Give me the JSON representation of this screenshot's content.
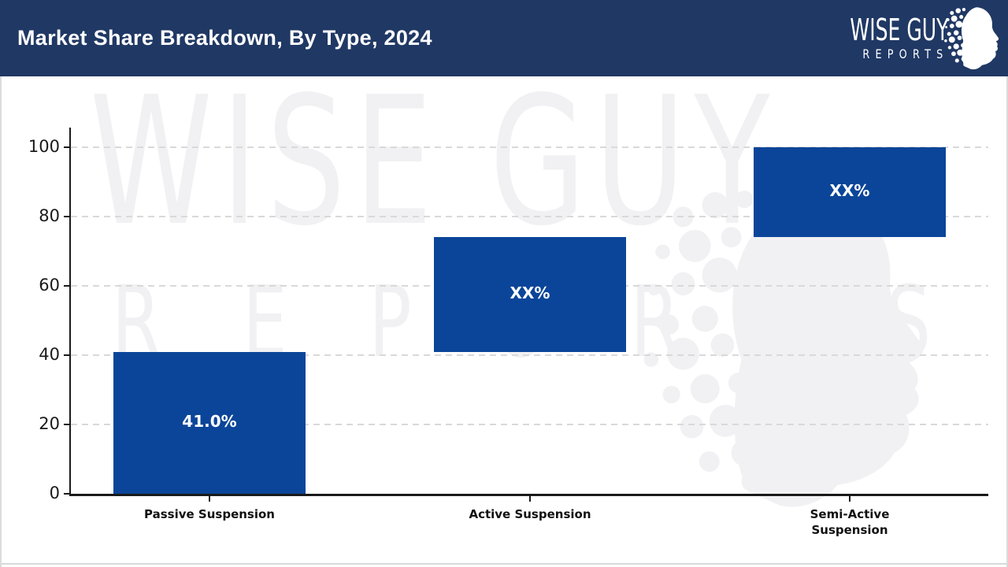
{
  "page": {
    "bg": "#ffffff",
    "border_color": "#dcdcdc"
  },
  "header": {
    "bg": "#203864",
    "title": "Market Share Breakdown, By Type, 2024",
    "logo": {
      "name": "WISE GUY",
      "sub": "REPORTS"
    }
  },
  "watermark": {
    "line1": "WISE GUY",
    "line2": "R E P O R T S"
  },
  "chart_data": {
    "type": "bar",
    "subtype": "waterfall",
    "title": "Market Share Breakdown, By Type, 2024",
    "categories": [
      "Passive Suspension",
      "Active Suspension",
      "Semi-Active Suspension"
    ],
    "segments": [
      {
        "category": "Passive Suspension",
        "start": 0,
        "end": 41,
        "label": "41.0%"
      },
      {
        "category": "Active Suspension",
        "start": 41,
        "end": 74,
        "label": "XX%"
      },
      {
        "category": "Semi-Active Suspension",
        "start": 74,
        "end": 100,
        "label": "XX%"
      }
    ],
    "y_ticks": [
      0,
      20,
      40,
      60,
      80,
      100
    ],
    "ylim": [
      0,
      105
    ],
    "xlabel": "",
    "ylabel": "",
    "grid": "horizontal-dashed",
    "legend": "none",
    "bar_color": "#0B4599",
    "bar_label_color": "#ffffff",
    "axis_color": "#1a1a1a",
    "gridline_color": "#d9d9d9"
  }
}
